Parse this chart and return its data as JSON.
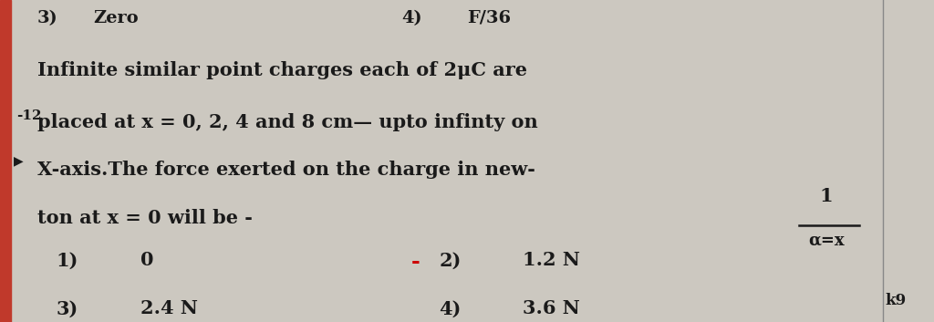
{
  "bg_color": "#ccc8c0",
  "text_color": "#1a1a1a",
  "top_line_left_num": "3)",
  "top_line_left_text": "Zero",
  "top_line_right_num": "4)",
  "top_line_right_text": "F/36",
  "question_lines": [
    "Infinite similar point charges each of 2μC are",
    "placed at x = 0, 2, 4 and 8 cm— upto infinty on",
    "X-axis.The force exerted on the charge in new-",
    "ton at x = 0 will be -"
  ],
  "opt1_num": "1)",
  "opt1_txt": "0",
  "opt2_num": "2)",
  "opt2_txt": "1.2 N",
  "opt3_num": "3)",
  "opt3_txt": "2.4 N",
  "opt4_num": "4)",
  "opt4_txt": "3.6 N",
  "side_left_text": "-12",
  "side_arrow": "▶",
  "side_right_label": "k9",
  "frac_num": "1",
  "frac_denom": "α=x",
  "red_mark": "-",
  "left_strip_color": "#c0392b",
  "font_size_top": 14,
  "font_size_main": 15,
  "font_size_opt": 15,
  "font_size_side": 12
}
